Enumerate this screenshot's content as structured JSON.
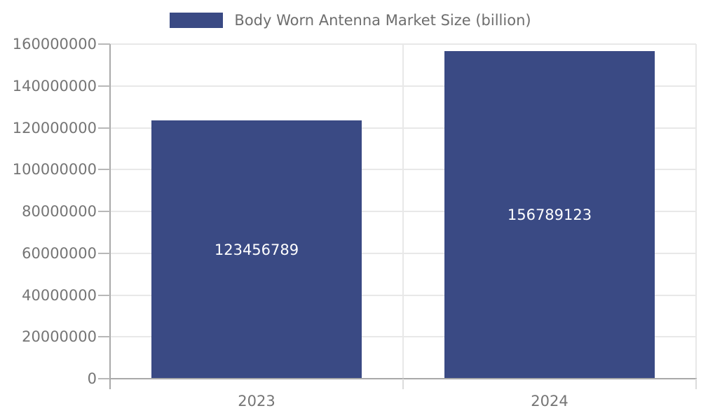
{
  "legend": {
    "label": "Body Worn Antenna Market Size (billion)"
  },
  "chart_data": {
    "type": "bar",
    "title": "",
    "categories": [
      "2023",
      "2024"
    ],
    "values": [
      123456789,
      156789123
    ],
    "bar_value_labels": [
      "123456789",
      "156789123"
    ],
    "legend_entries": [
      "Body Worn Antenna Market Size (billion)"
    ],
    "legend_position": "top-center",
    "xlabel": "",
    "ylabel": "",
    "ylim": [
      0,
      160000000
    ],
    "yticks": [
      0,
      20000000,
      40000000,
      60000000,
      80000000,
      100000000,
      120000000,
      140000000,
      160000000
    ],
    "grid": true,
    "colors": {
      "bar": "#3a4a84",
      "grid": "#e8e8e8",
      "axis": "#a9a9a9",
      "boundary_tick": "#dcdcdc",
      "tick_text": "#757575",
      "legend_text": "#6e6e6e",
      "value_label": "#ffffff"
    }
  }
}
